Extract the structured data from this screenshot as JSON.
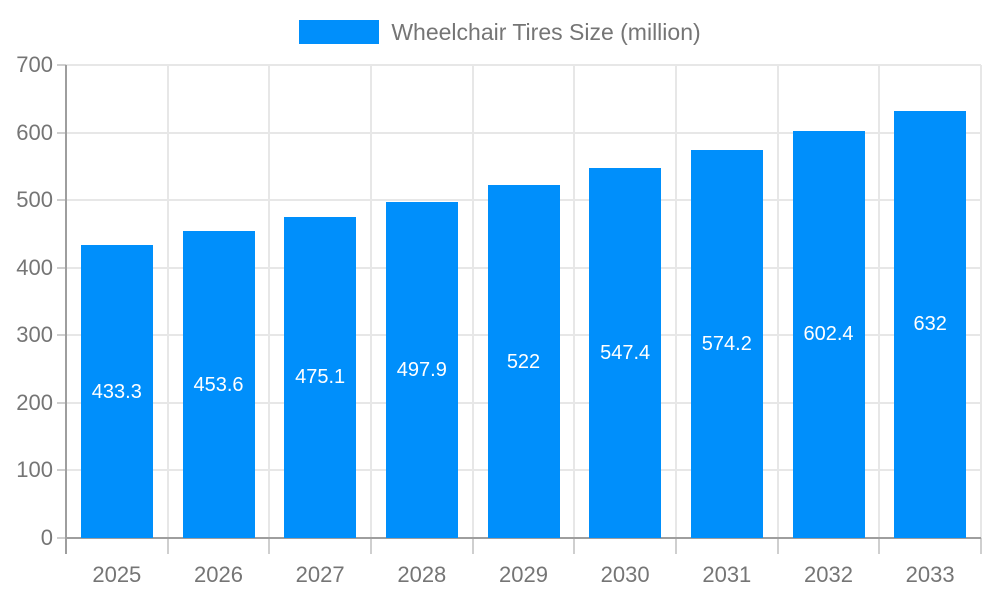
{
  "legend": {
    "label": "Wheelchair Tires Size (million)"
  },
  "colors": {
    "bar": "#008ffb",
    "grid": "#e7e7e7",
    "axis": "#9e9e9e",
    "tick": "#cfcfcf",
    "text": "#757575",
    "value_text": "#ffffff",
    "background": "#ffffff"
  },
  "chart_data": {
    "type": "bar",
    "title": "Wheelchair Tires Size (million)",
    "series_name": "Wheelchair Tires Size (million)",
    "categories": [
      "2025",
      "2026",
      "2027",
      "2028",
      "2029",
      "2030",
      "2031",
      "2032",
      "2033"
    ],
    "values": [
      433.3,
      453.6,
      475.1,
      497.9,
      522,
      547.4,
      574.2,
      602.4,
      632
    ],
    "value_labels": [
      "433.3",
      "453.6",
      "475.1",
      "497.9",
      "522",
      "547.4",
      "574.2",
      "602.4",
      "632"
    ],
    "xlabel": "",
    "ylabel": "",
    "ylim": [
      0,
      700
    ],
    "ytick_interval": 100,
    "yticks": [
      0,
      100,
      200,
      300,
      400,
      500,
      600,
      700
    ],
    "grid": true,
    "legend_position": "top",
    "data_label_position": "inside-center"
  }
}
